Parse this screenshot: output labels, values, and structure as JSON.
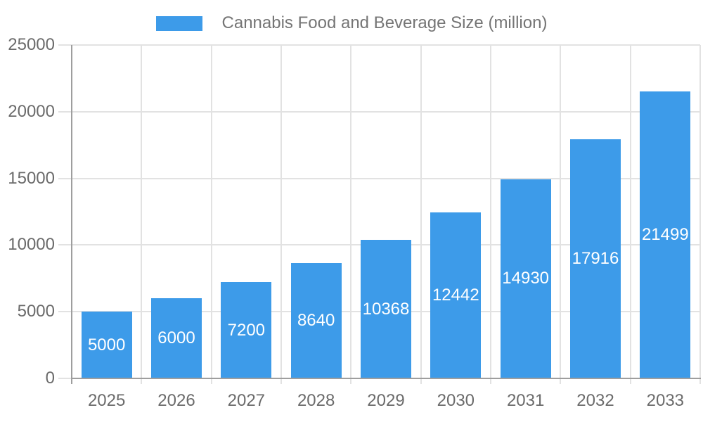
{
  "legend": {
    "label": "Cannabis Food and Beverage Size (million)"
  },
  "colors": {
    "bar": "#3D9BE9",
    "grid_line": "#E2E2E2",
    "axis_line": "#9E9E9E",
    "axis_label": "#6B6B6B",
    "legend_label": "#757575",
    "bar_label": "#FFFFFF",
    "background": "#FFFFFF"
  },
  "chart_data": {
    "type": "bar",
    "title": "Cannabis Food and Beverage Size (million)",
    "categories": [
      "2025",
      "2026",
      "2027",
      "2028",
      "2029",
      "2030",
      "2031",
      "2032",
      "2033"
    ],
    "series": [
      {
        "name": "Cannabis Food and Beverage Size (million)",
        "values": [
          5000,
          6000,
          7200,
          8640,
          10368,
          12442,
          14930,
          17916,
          21499
        ]
      }
    ],
    "xlabel": "",
    "ylabel": "",
    "ylim": [
      0,
      25000
    ],
    "yticks": [
      0,
      5000,
      10000,
      15000,
      20000,
      25000
    ],
    "grid": true,
    "legend_position": "top",
    "value_labels": "inside-center"
  }
}
